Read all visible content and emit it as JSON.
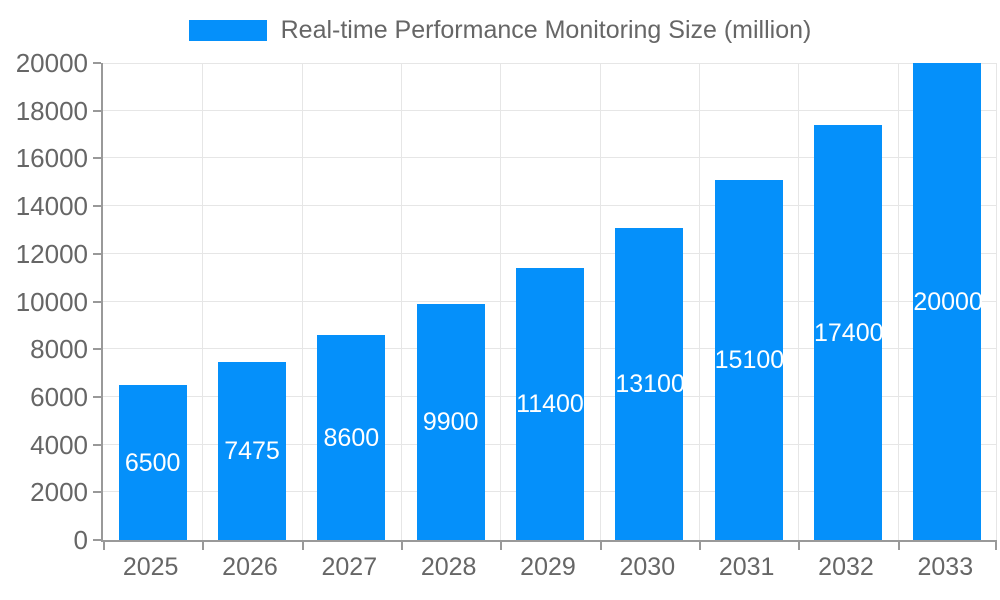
{
  "legend": {
    "label": "Real-time Performance Monitoring Size (million)"
  },
  "chart_data": {
    "type": "bar",
    "title": "Real-time Performance Monitoring Size (million)",
    "categories": [
      "2025",
      "2026",
      "2027",
      "2028",
      "2029",
      "2030",
      "2031",
      "2032",
      "2033"
    ],
    "values": [
      6500,
      7475,
      8600,
      9900,
      11400,
      13100,
      15100,
      17400,
      20000
    ],
    "xlabel": "",
    "ylabel": "",
    "ylim": [
      0,
      20000
    ],
    "ytick_step": 2000,
    "ytick_labels": [
      "0",
      "2000",
      "4000",
      "6000",
      "8000",
      "10000",
      "12000",
      "14000",
      "16000",
      "18000",
      "20000"
    ],
    "grid": true,
    "legend_position": "top",
    "value_labels": "inside-center",
    "colors": {
      "bar": "#0590fa",
      "axis": "#999999",
      "grid": "#e6e6e6",
      "text": "#666666",
      "value_label": "#ffffff"
    }
  }
}
